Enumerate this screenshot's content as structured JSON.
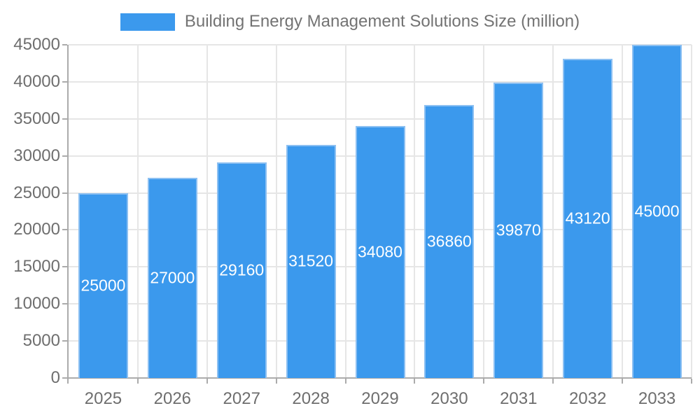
{
  "chart_data": {
    "type": "bar",
    "title": "Building Energy Management Solutions Size (million)",
    "categories": [
      "2025",
      "2026",
      "2027",
      "2028",
      "2029",
      "2030",
      "2031",
      "2032",
      "2033"
    ],
    "values": [
      25000,
      27000,
      29160,
      31520,
      34080,
      36860,
      39870,
      43120,
      45000
    ],
    "value_labels": [
      "25000",
      "27000",
      "29160",
      "31520",
      "34080",
      "36860",
      "39870",
      "43120",
      "45000"
    ],
    "xlabel": "",
    "ylabel": "",
    "ylim": [
      0,
      45000
    ],
    "ytick_step": 5000,
    "yticks": [
      "0",
      "5000",
      "10000",
      "15000",
      "20000",
      "25000",
      "30000",
      "35000",
      "40000",
      "45000"
    ],
    "grid": true,
    "legend_position": "top",
    "colors": {
      "bar_fill": "#3b99ed",
      "bar_border": "#8cc0f2",
      "grid": "#e6e6e6",
      "axis": "#ababab",
      "tick_text": "#6e6e6e",
      "value_text": "#ffffff",
      "legend_text": "#737373"
    }
  }
}
